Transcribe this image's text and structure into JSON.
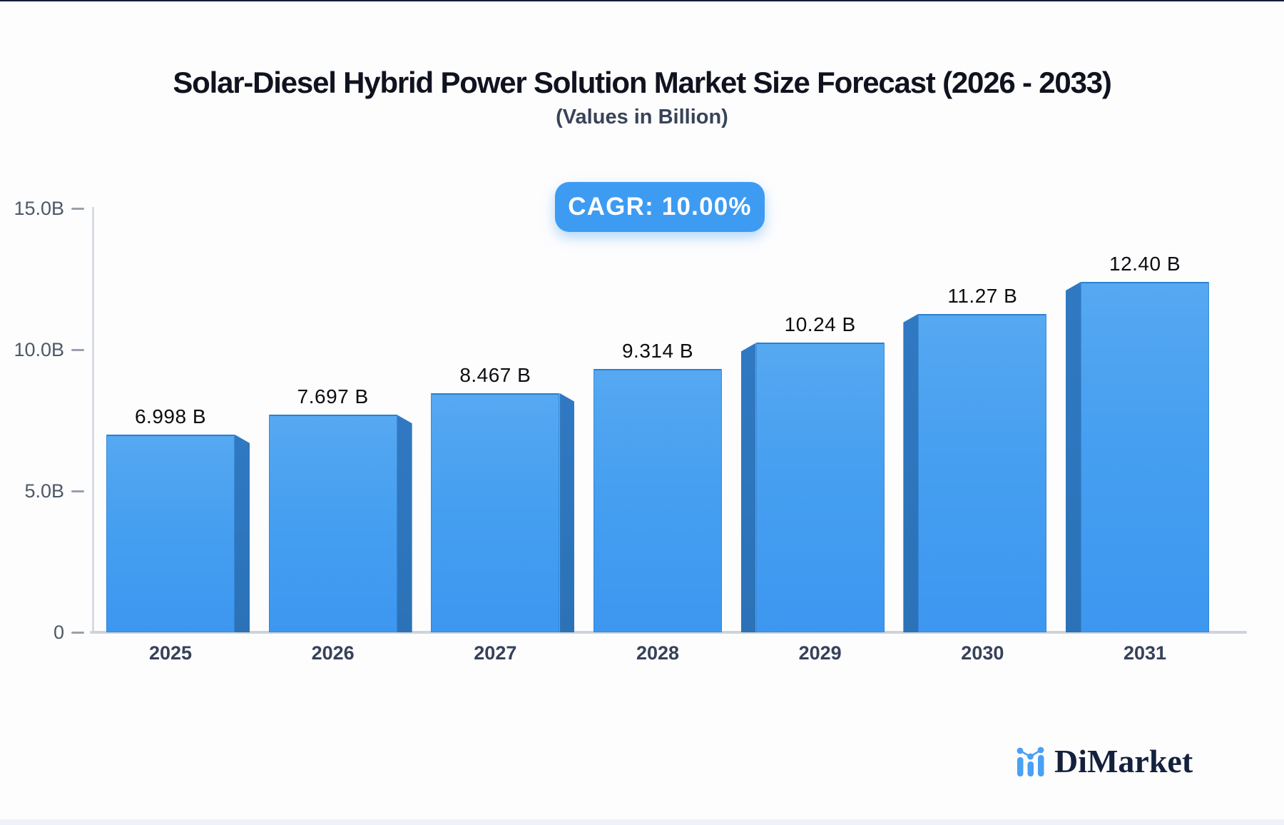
{
  "header": {
    "title": "Solar-Diesel Hybrid Power Solution Market Size Forecast (2026 - 2033)",
    "subtitle": "(Values in Billion)"
  },
  "badge": {
    "label": "CAGR: 10.00%"
  },
  "chart_data": {
    "type": "bar",
    "title": "Solar-Diesel Hybrid Power Solution Market Size Forecast (2026 - 2033)",
    "subtitle": "(Values in Billion)",
    "annotation": "CAGR: 10.00%",
    "categories": [
      "2025",
      "2026",
      "2027",
      "2028",
      "2029",
      "2030",
      "2031"
    ],
    "values": [
      6.998,
      7.697,
      8.467,
      9.314,
      10.24,
      11.27,
      12.4
    ],
    "value_labels": [
      "6.998 B",
      "7.697 B",
      "8.467 B",
      "9.314 B",
      "10.24 B",
      "11.27 B",
      "12.40 B"
    ],
    "y_ticks": [
      {
        "label": "15.0B",
        "value": 15
      },
      {
        "label": "10.0B",
        "value": 10
      },
      {
        "label": "5.0B",
        "value": 5
      },
      {
        "label": "0",
        "value": 0
      }
    ],
    "ylim": [
      0,
      15
    ],
    "grid": false,
    "legend": false,
    "perspective_sides": [
      "right",
      "right",
      "right",
      "none",
      "left",
      "left",
      "left"
    ],
    "colors": {
      "bar_top": "#56a8f1",
      "bar_bottom": "#3d97f0",
      "bar_side": "#2d77bd",
      "badge": "#3d9bf2",
      "axis": "#ced3d9",
      "tick_text": "#4d5866",
      "category_text": "#36415a",
      "value_text": "#0c0d10"
    }
  },
  "logo": {
    "text": "DiMarket",
    "icon": "bar-chart-logo-icon",
    "text_color": "#14213d",
    "icon_color": "#4aa0f4"
  }
}
